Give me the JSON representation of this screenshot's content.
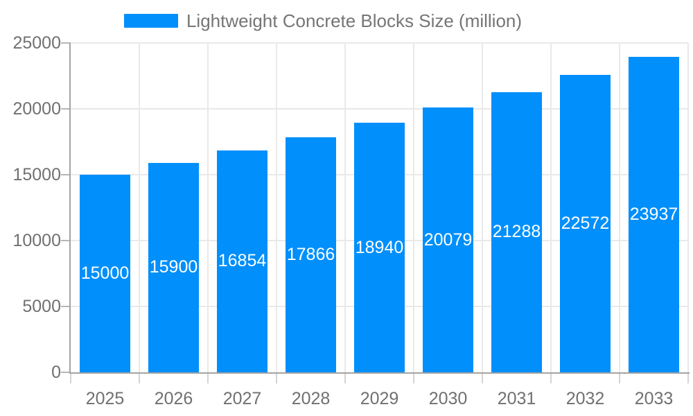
{
  "chart_data": {
    "type": "bar",
    "title": "Lightweight Concrete Blocks Size (million)",
    "categories": [
      "2025",
      "2026",
      "2027",
      "2028",
      "2029",
      "2030",
      "2031",
      "2032",
      "2033"
    ],
    "series": [
      {
        "name": "Lightweight Concrete Blocks Size (million)",
        "values": [
          15000,
          15900,
          16854,
          17866,
          18940,
          20079,
          21288,
          22572,
          23937
        ]
      }
    ],
    "xlabel": "",
    "ylabel": "",
    "ylim": [
      0,
      25000
    ],
    "y_ticks": [
      0,
      5000,
      10000,
      15000,
      20000,
      25000
    ],
    "grid": true,
    "legend_position": "top",
    "bar_value_labels_visible": true,
    "colors": {
      "bar": "#008FFB",
      "grid": "#e9e9e9",
      "axis": "#a3a3a3",
      "x_tick": "#d4d4d4",
      "y_tick": "#b5b5b5",
      "axis_label": "#707070",
      "legend_label": "#757575",
      "value_label": "#ffffff",
      "background": "#ffffff"
    }
  }
}
